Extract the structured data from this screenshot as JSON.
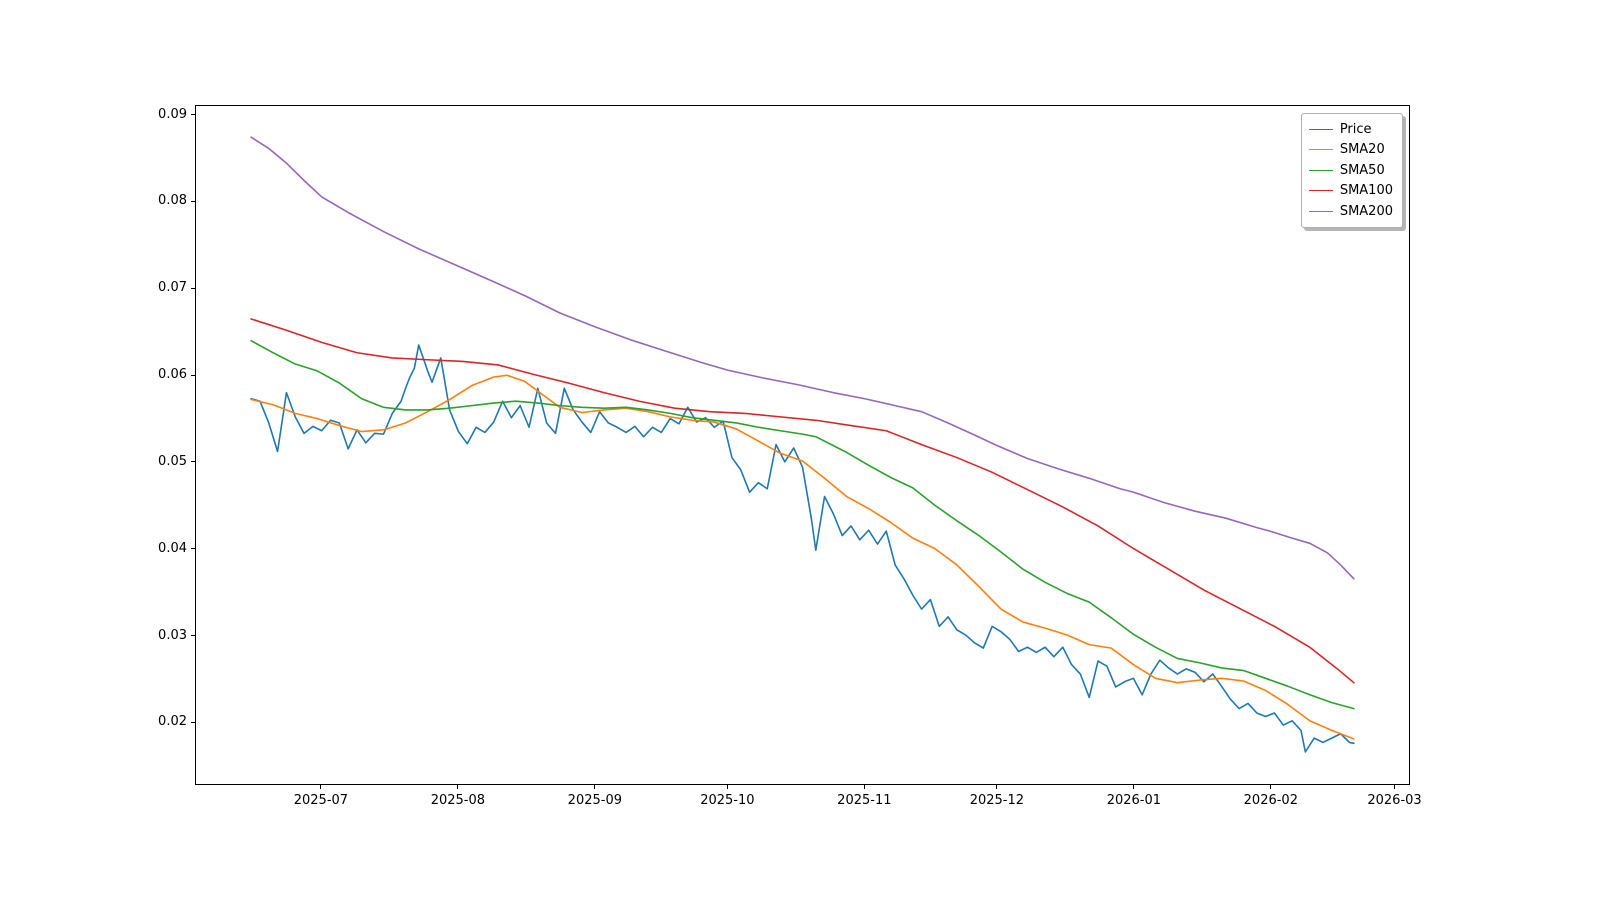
{
  "figure": {
    "background": "#ffffff",
    "title": ""
  },
  "chart_data": {
    "type": "line",
    "title": "",
    "xlabel": "",
    "ylabel": "",
    "grid": false,
    "legend_position": "upper right",
    "x_unit": "days since 2025-06-15",
    "xlim": [
      -12.5,
      262.5
    ],
    "ylim": [
      0.0128,
      0.0911
    ],
    "x_ticks": [
      {
        "day": 16,
        "label": "2025-07"
      },
      {
        "day": 47,
        "label": "2025-08"
      },
      {
        "day": 78,
        "label": "2025-09"
      },
      {
        "day": 108,
        "label": "2025-10"
      },
      {
        "day": 139,
        "label": "2025-11"
      },
      {
        "day": 169,
        "label": "2025-12"
      },
      {
        "day": 200,
        "label": "2026-01"
      },
      {
        "day": 231,
        "label": "2026-02"
      },
      {
        "day": 259,
        "label": "2026-03"
      }
    ],
    "y_ticks": [
      {
        "value": 0.02,
        "label": "0.02"
      },
      {
        "value": 0.03,
        "label": "0.03"
      },
      {
        "value": 0.04,
        "label": "0.04"
      },
      {
        "value": 0.05,
        "label": "0.05"
      },
      {
        "value": 0.06,
        "label": "0.06"
      },
      {
        "value": 0.07,
        "label": "0.07"
      },
      {
        "value": 0.08,
        "label": "0.08"
      },
      {
        "value": 0.09,
        "label": "0.09"
      }
    ],
    "series": [
      {
        "name": "Price",
        "color": "#1f77b4",
        "x": [
          0,
          2,
          4,
          6,
          8,
          10,
          12,
          14,
          16,
          18,
          20,
          22,
          24,
          26,
          28,
          30,
          32,
          34,
          35,
          36,
          37,
          38,
          40,
          41,
          43,
          45,
          47,
          49,
          51,
          53,
          55,
          57,
          59,
          61,
          63,
          65,
          67,
          69,
          71,
          73,
          75,
          77,
          79,
          81,
          83,
          85,
          87,
          89,
          91,
          93,
          95,
          97,
          99,
          101,
          103,
          105,
          107,
          109,
          111,
          113,
          115,
          117,
          119,
          121,
          123,
          125,
          127,
          128,
          130,
          132,
          134,
          136,
          138,
          140,
          142,
          144,
          146,
          148,
          150,
          152,
          154,
          156,
          158,
          160,
          162,
          164,
          166,
          168,
          170,
          172,
          174,
          176,
          178,
          180,
          182,
          184,
          186,
          188,
          190,
          192,
          194,
          196,
          198,
          200,
          202,
          204,
          206,
          208,
          210,
          212,
          214,
          216,
          218,
          220,
          222,
          224,
          226,
          228,
          230,
          232,
          234,
          236,
          238,
          239,
          241,
          243,
          245,
          247,
          249,
          250
        ],
        "values": [
          0.0573,
          0.057,
          0.0545,
          0.0512,
          0.058,
          0.0552,
          0.0533,
          0.0541,
          0.0536,
          0.0548,
          0.0545,
          0.0515,
          0.0537,
          0.0522,
          0.0533,
          0.0532,
          0.0556,
          0.057,
          0.0585,
          0.0598,
          0.0608,
          0.0635,
          0.0605,
          0.0592,
          0.062,
          0.056,
          0.0535,
          0.0521,
          0.054,
          0.0534,
          0.0546,
          0.057,
          0.0551,
          0.0565,
          0.054,
          0.0585,
          0.0545,
          0.0533,
          0.0585,
          0.056,
          0.0546,
          0.0534,
          0.0558,
          0.0545,
          0.054,
          0.0534,
          0.0541,
          0.0529,
          0.054,
          0.0534,
          0.055,
          0.0544,
          0.0563,
          0.0546,
          0.0551,
          0.054,
          0.0547,
          0.0505,
          0.0491,
          0.0465,
          0.0476,
          0.0469,
          0.052,
          0.05,
          0.0516,
          0.0494,
          0.0435,
          0.0398,
          0.046,
          0.044,
          0.0415,
          0.0426,
          0.041,
          0.0421,
          0.0405,
          0.042,
          0.0381,
          0.0365,
          0.0346,
          0.033,
          0.0341,
          0.031,
          0.0321,
          0.0306,
          0.03,
          0.0291,
          0.0285,
          0.031,
          0.0304,
          0.0295,
          0.0281,
          0.0286,
          0.028,
          0.0286,
          0.0275,
          0.0286,
          0.0266,
          0.0255,
          0.0228,
          0.027,
          0.0264,
          0.024,
          0.0246,
          0.025,
          0.0231,
          0.0255,
          0.0271,
          0.0262,
          0.0255,
          0.0261,
          0.0257,
          0.0246,
          0.0255,
          0.0241,
          0.0226,
          0.0215,
          0.0221,
          0.021,
          0.0206,
          0.021,
          0.0196,
          0.0201,
          0.019,
          0.0165,
          0.0181,
          0.0176,
          0.0181,
          0.0186,
          0.0176,
          0.0175
        ]
      },
      {
        "name": "SMA20",
        "color": "#ff7f0e",
        "x": [
          0,
          5,
          10,
          15,
          20,
          25,
          30,
          35,
          40,
          45,
          50,
          55,
          58,
          62,
          66,
          70,
          75,
          80,
          85,
          90,
          95,
          100,
          105,
          110,
          115,
          120,
          125,
          130,
          135,
          140,
          145,
          150,
          155,
          160,
          165,
          170,
          175,
          180,
          185,
          190,
          195,
          200,
          205,
          210,
          215,
          220,
          225,
          230,
          235,
          240,
          245,
          250
        ],
        "values": [
          0.0572,
          0.0566,
          0.0556,
          0.055,
          0.0542,
          0.0535,
          0.0537,
          0.0545,
          0.0558,
          0.0572,
          0.0588,
          0.0598,
          0.06,
          0.0593,
          0.0578,
          0.0563,
          0.0557,
          0.056,
          0.0562,
          0.0558,
          0.0552,
          0.0548,
          0.0546,
          0.0538,
          0.0524,
          0.051,
          0.0501,
          0.0481,
          0.046,
          0.0446,
          0.043,
          0.0412,
          0.04,
          0.0381,
          0.0356,
          0.033,
          0.0315,
          0.0308,
          0.03,
          0.0289,
          0.0285,
          0.0266,
          0.025,
          0.0245,
          0.0248,
          0.025,
          0.0247,
          0.0236,
          0.022,
          0.0201,
          0.019,
          0.018
        ]
      },
      {
        "name": "SMA50",
        "color": "#2ca02c",
        "x": [
          0,
          5,
          10,
          15,
          20,
          25,
          30,
          35,
          40,
          45,
          50,
          55,
          60,
          65,
          70,
          75,
          80,
          85,
          90,
          95,
          100,
          105,
          110,
          115,
          120,
          125,
          128,
          135,
          140,
          145,
          150,
          155,
          160,
          165,
          170,
          175,
          180,
          185,
          190,
          195,
          200,
          205,
          210,
          215,
          220,
          225,
          230,
          235,
          240,
          245,
          250
        ],
        "values": [
          0.064,
          0.0626,
          0.0613,
          0.0605,
          0.0591,
          0.0573,
          0.0563,
          0.056,
          0.056,
          0.0562,
          0.0565,
          0.0568,
          0.057,
          0.0568,
          0.0565,
          0.0563,
          0.0562,
          0.0563,
          0.056,
          0.0556,
          0.0551,
          0.0548,
          0.0545,
          0.054,
          0.0536,
          0.0532,
          0.0529,
          0.0511,
          0.0496,
          0.0482,
          0.047,
          0.045,
          0.0432,
          0.0415,
          0.0396,
          0.0376,
          0.0361,
          0.0348,
          0.0338,
          0.032,
          0.0301,
          0.0286,
          0.0273,
          0.0268,
          0.0262,
          0.0259,
          0.025,
          0.0241,
          0.0231,
          0.0222,
          0.0215
        ]
      },
      {
        "name": "SMA100",
        "color": "#d62728",
        "x": [
          0,
          8,
          16,
          24,
          32,
          40,
          48,
          56,
          64,
          72,
          80,
          88,
          96,
          104,
          112,
          120,
          128,
          136,
          144,
          152,
          160,
          168,
          176,
          184,
          192,
          200,
          208,
          216,
          224,
          232,
          240,
          246,
          250
        ],
        "values": [
          0.0665,
          0.0652,
          0.0638,
          0.0626,
          0.062,
          0.0618,
          0.0616,
          0.0612,
          0.0601,
          0.0591,
          0.058,
          0.057,
          0.0562,
          0.0558,
          0.0556,
          0.0552,
          0.0548,
          0.0542,
          0.0536,
          0.052,
          0.0505,
          0.0488,
          0.0468,
          0.0448,
          0.0426,
          0.04,
          0.0376,
          0.0352,
          0.0331,
          0.031,
          0.0286,
          0.0262,
          0.0245
        ]
      },
      {
        "name": "SMA200",
        "color": "#9467bd",
        "x": [
          0,
          4,
          8,
          12,
          16,
          22,
          30,
          38,
          47,
          55,
          62,
          70,
          78,
          86,
          94,
          102,
          108,
          116,
          124,
          132,
          139,
          146,
          152,
          158,
          164,
          169,
          176,
          183,
          190,
          197,
          200,
          207,
          214,
          221,
          228,
          231,
          236,
          240,
          244,
          247,
          250
        ],
        "values": [
          0.0875,
          0.0862,
          0.0845,
          0.0825,
          0.0806,
          0.0788,
          0.0766,
          0.0746,
          0.0726,
          0.0708,
          0.0692,
          0.0672,
          0.0656,
          0.0641,
          0.0628,
          0.0615,
          0.0606,
          0.0597,
          0.0589,
          0.058,
          0.0573,
          0.0565,
          0.0558,
          0.0545,
          0.0531,
          0.0519,
          0.0504,
          0.0492,
          0.0481,
          0.0469,
          0.0465,
          0.0453,
          0.0443,
          0.0435,
          0.0424,
          0.042,
          0.0412,
          0.0406,
          0.0395,
          0.0381,
          0.0365
        ]
      }
    ],
    "legend": {
      "entries": [
        "Price",
        "SMA20",
        "SMA50",
        "SMA100",
        "SMA200"
      ]
    }
  }
}
